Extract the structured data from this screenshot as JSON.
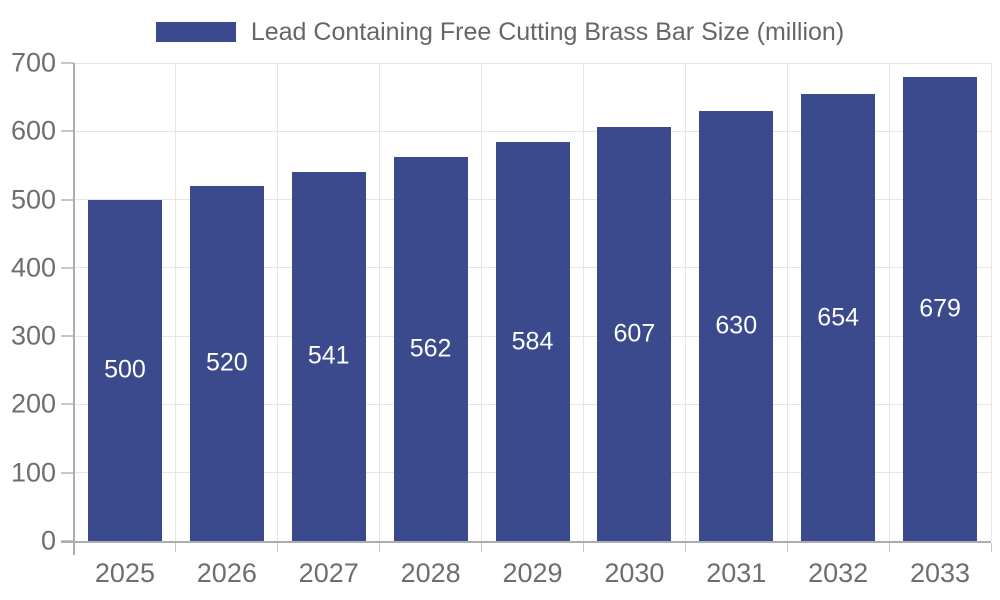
{
  "chart_data": {
    "type": "bar",
    "title": "",
    "legend": {
      "label": "Lead Containing Free Cutting Brass Bar Size (million)",
      "position": "top-center"
    },
    "categories": [
      "2025",
      "2026",
      "2027",
      "2028",
      "2029",
      "2030",
      "2031",
      "2032",
      "2033"
    ],
    "series": [
      {
        "name": "Lead Containing Free Cutting Brass Bar Size (million)",
        "values": [
          500,
          520,
          541,
          562,
          584,
          607,
          630,
          654,
          679
        ]
      }
    ],
    "xlabel": "",
    "ylabel": "",
    "ylim": [
      0,
      700
    ],
    "yticks": [
      0,
      100,
      200,
      300,
      400,
      500,
      600,
      700
    ],
    "grid": true,
    "bar_value_labels": [
      "500",
      "520",
      "541",
      "562",
      "584",
      "607",
      "630",
      "654",
      "679"
    ]
  },
  "colors": {
    "background": "#FFFFFF",
    "bar": "#3A4A8D",
    "bar_label": "#FFFFFF",
    "legend_text": "#666666",
    "axis_text": "#6E6E6E",
    "gridline": "#E6E6E6",
    "axis_line": "#ADADAD",
    "tick": "#C6C6C6"
  }
}
